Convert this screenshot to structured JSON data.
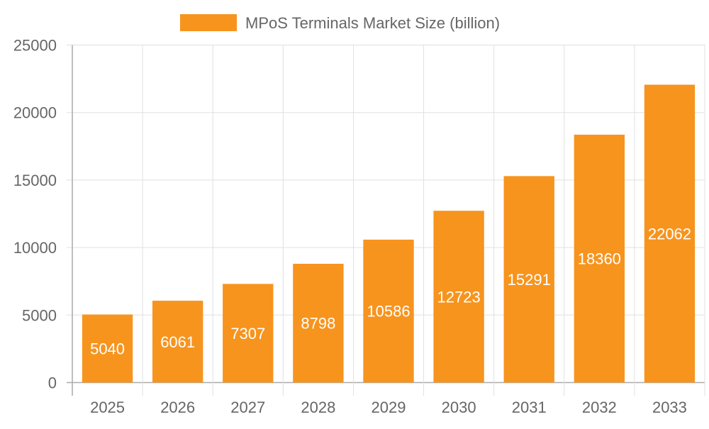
{
  "chart_data": {
    "type": "bar",
    "title": "",
    "xlabel": "",
    "ylabel": "",
    "categories": [
      "2025",
      "2026",
      "2027",
      "2028",
      "2029",
      "2030",
      "2031",
      "2032",
      "2033"
    ],
    "series": [
      {
        "name": "MPoS Terminals Market Size (billion)",
        "values": [
          5040,
          6061,
          7307,
          8798,
          10586,
          12723,
          15291,
          18360,
          22062
        ],
        "color": "#f7941e"
      }
    ],
    "ylim": [
      0,
      25000
    ],
    "yticks": [
      0,
      5000,
      10000,
      15000,
      20000,
      25000
    ],
    "grid": true,
    "legend": "top-center",
    "data_labels": true,
    "data_label_color": "#ffffff"
  }
}
